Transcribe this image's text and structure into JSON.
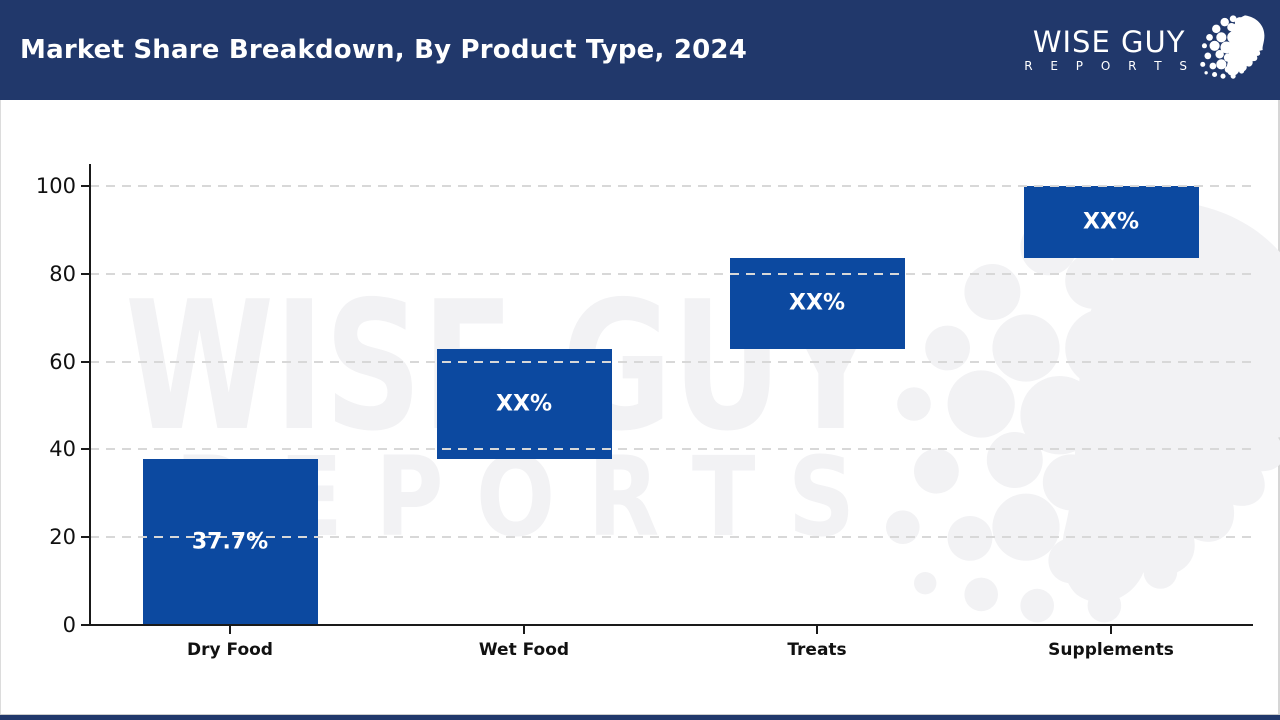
{
  "header": {
    "title": "Market Share Breakdown, By Product Type, 2024",
    "logo": {
      "line1": "WISE GUY",
      "line2": "R E P O R T S"
    }
  },
  "watermark": {
    "line1": "WISE GUY",
    "line2": "R E P O R T S"
  },
  "colors": {
    "header_bg": "#21386b",
    "footer_bg": "#21386b",
    "bar": "#0c49a0",
    "grid": "#d8d8d8",
    "axis": "#1a1a1a",
    "bar_label": "#ffffff",
    "watermark": "#f2f2f4"
  },
  "chart_data": {
    "type": "waterfall",
    "title": "Market Share Breakdown, By Product Type, 2024",
    "categories": [
      "Dry Food",
      "Wet Food",
      "Treats",
      "Supplements"
    ],
    "bars": [
      {
        "category": "Dry Food",
        "start": 0,
        "end": 37.7,
        "label": "37.7%"
      },
      {
        "category": "Wet Food",
        "start": 37.7,
        "end": 62.8,
        "label": "XX%"
      },
      {
        "category": "Treats",
        "start": 62.8,
        "end": 83.7,
        "label": "XX%"
      },
      {
        "category": "Supplements",
        "start": 83.7,
        "end": 100,
        "label": "XX%"
      }
    ],
    "xlabel": "",
    "ylabel": "",
    "ylim": [
      0,
      105
    ],
    "yticks": [
      0,
      20,
      40,
      60,
      80,
      100
    ],
    "grid": "horizontal-dashed-over-bars",
    "legend": "none",
    "bar_value_labels_inside": true
  }
}
